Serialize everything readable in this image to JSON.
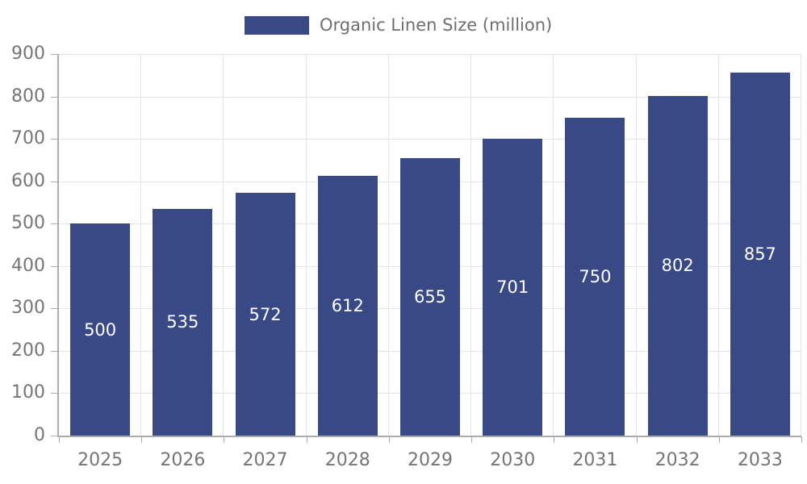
{
  "chart_data": {
    "type": "bar",
    "title": "",
    "legend": "Organic Linen Size (million)",
    "legend_position": "top-center",
    "categories": [
      "2025",
      "2026",
      "2027",
      "2028",
      "2029",
      "2030",
      "2031",
      "2032",
      "2033"
    ],
    "values": [
      500,
      535,
      572,
      612,
      655,
      701,
      750,
      802,
      857
    ],
    "xlabel": "",
    "ylabel": "",
    "ylim": [
      0,
      900
    ],
    "ytick_step": 100,
    "grid": true,
    "value_labels": "inside-center",
    "colors": {
      "bar": "#384985",
      "value_label": "#FFFFFF",
      "tick_label": "#757575",
      "legend_text": "#6E6E6E",
      "gridline": "#E5E5E5",
      "axis_line": "#ABABAB",
      "background": "#FFFFFF"
    }
  }
}
